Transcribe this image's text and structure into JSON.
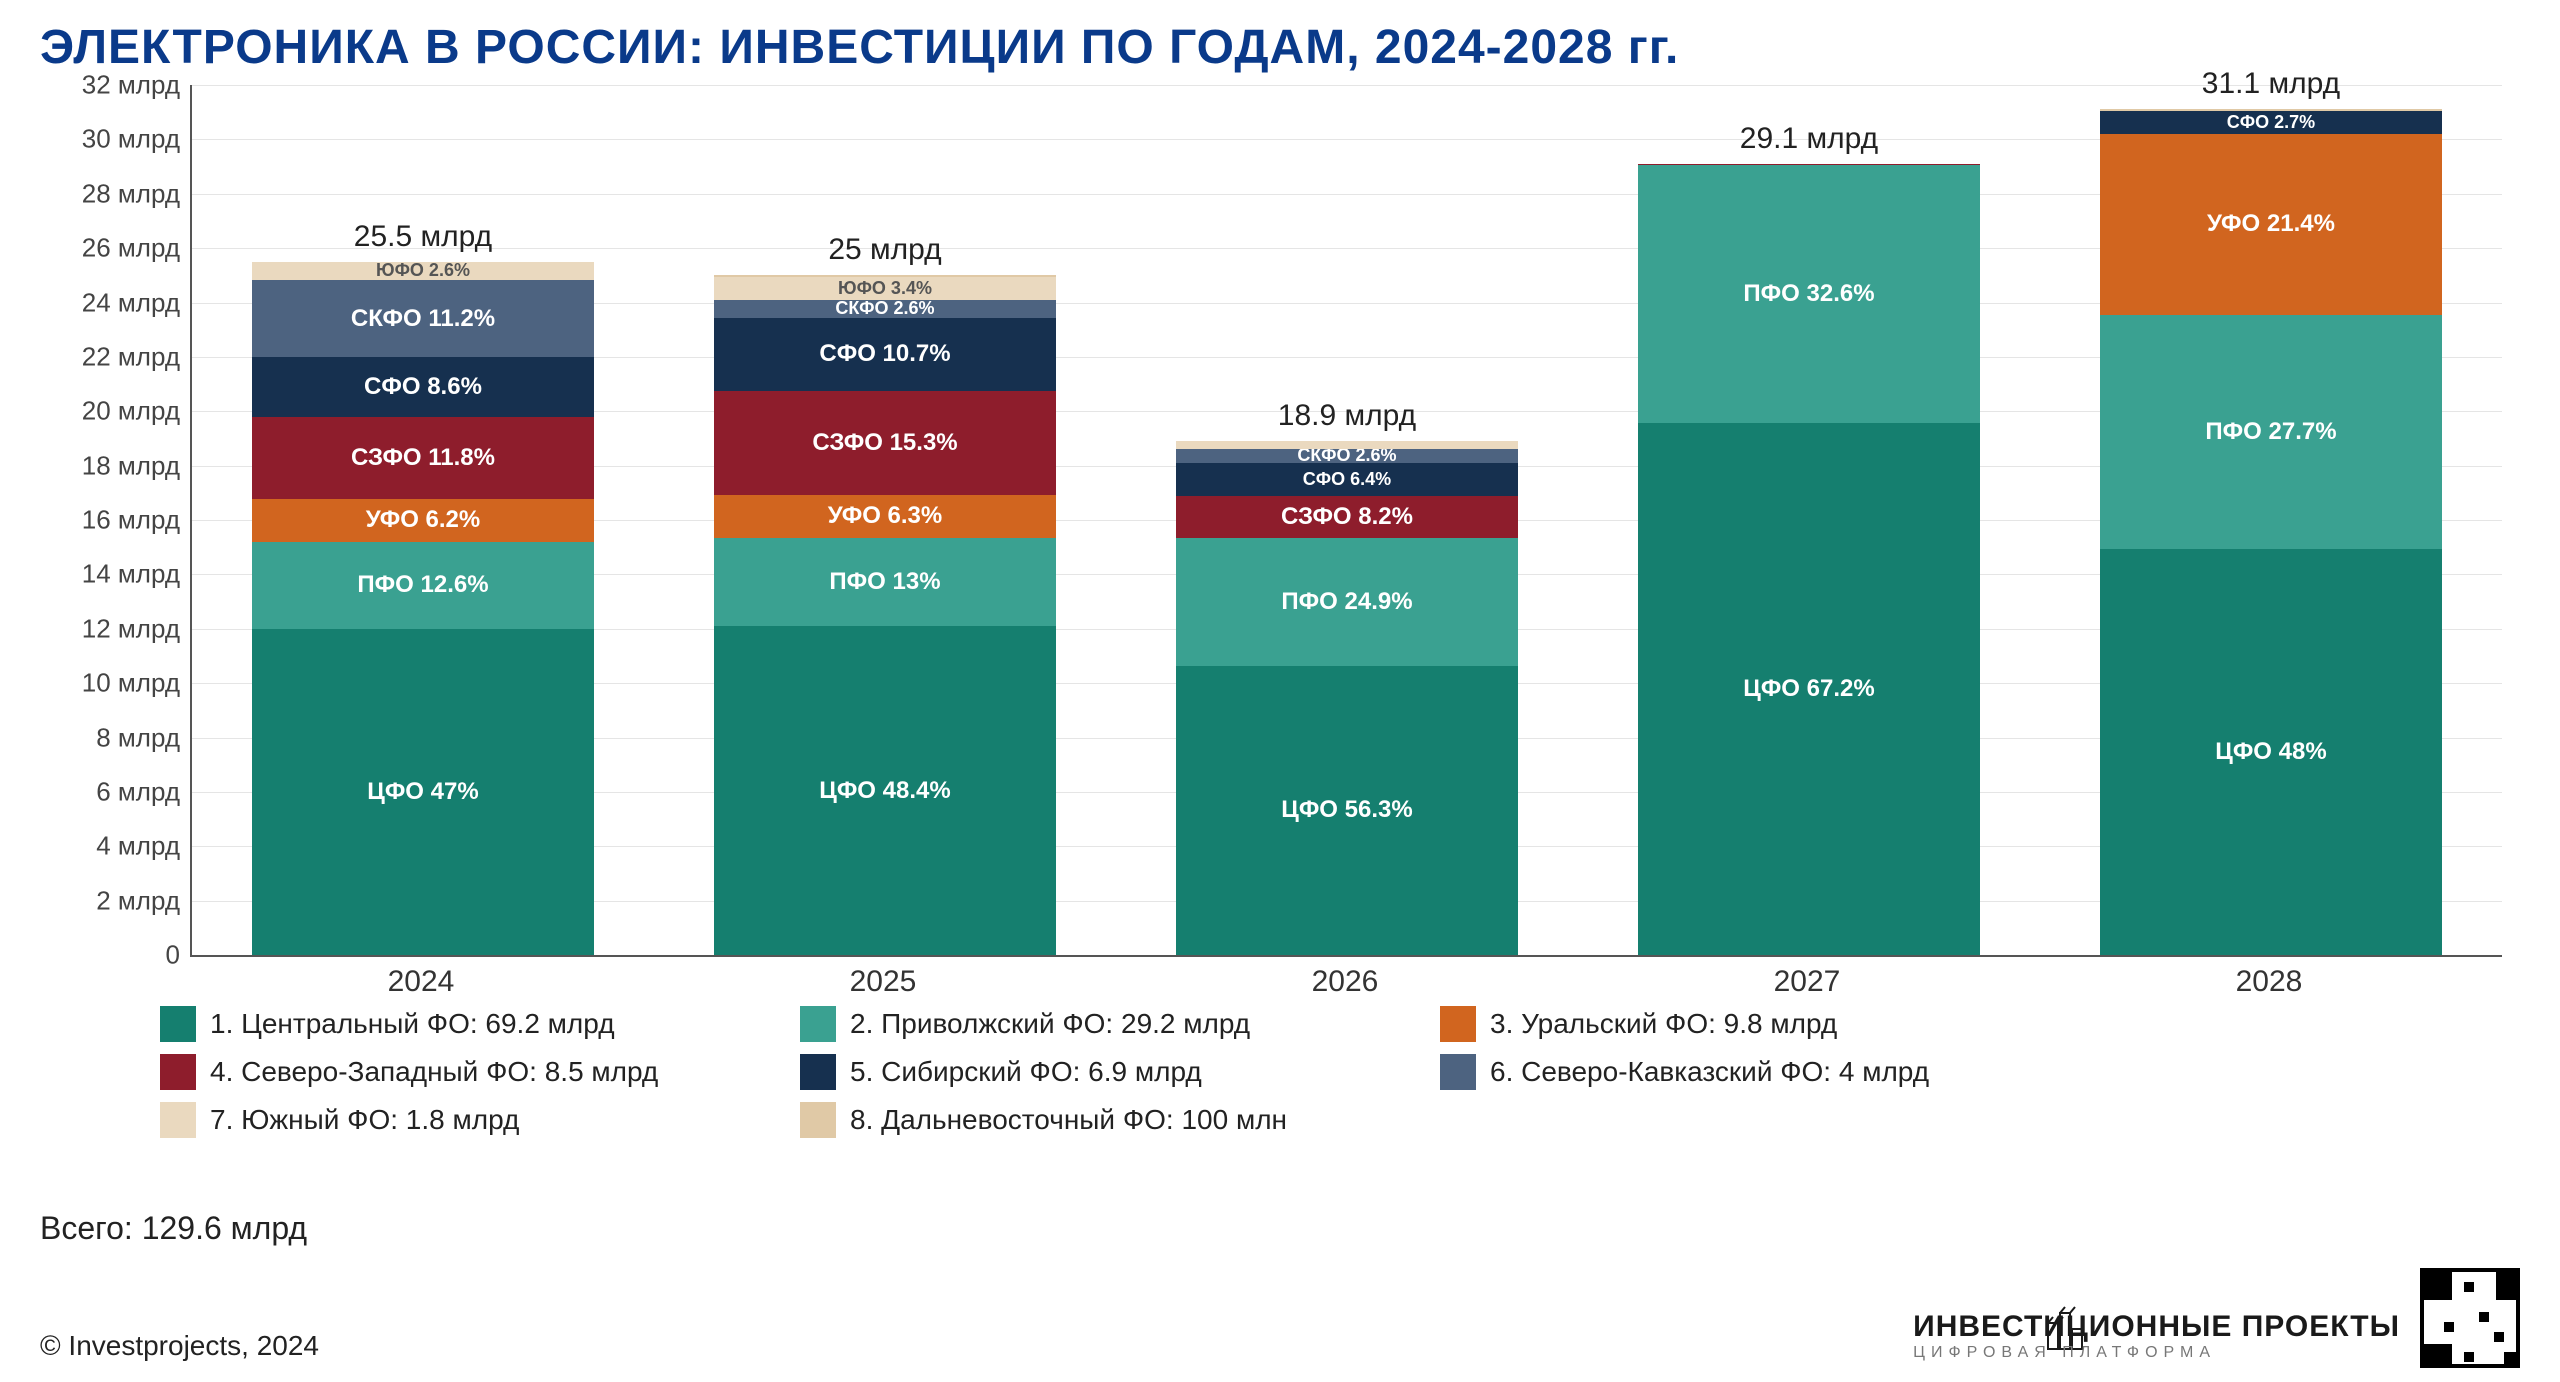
{
  "title": {
    "text": "ЭЛЕКТРОНИКА В РОССИИ: ИНВЕСТИЦИИ ПО ГОДАМ, 2024-2028 гг.",
    "color": "#0a3a8a"
  },
  "chart": {
    "type": "stacked-bar",
    "ylim": [
      0,
      32
    ],
    "ytick_step": 2,
    "ytick_unit": "млрд",
    "bar_width_ratio": 0.74,
    "background_color": "#ffffff",
    "grid_color": "#e5e5e5",
    "axis_color": "#555555",
    "label_fontsize": 26,
    "total_label_fontsize": 30,
    "segment_label_fontsize": 24,
    "years": [
      "2024",
      "2025",
      "2026",
      "2027",
      "2028"
    ],
    "bars": [
      {
        "year": "2024",
        "total_label": "25.5 млрд",
        "segments": [
          {
            "series": "cfo",
            "value": 11.99,
            "label": "ЦФО 47%"
          },
          {
            "series": "pfo",
            "value": 3.21,
            "label": "ПФО 12.6%"
          },
          {
            "series": "ufo",
            "value": 1.58,
            "label": "УФО 6.2%"
          },
          {
            "series": "szfo",
            "value": 3.01,
            "label": "СЗФО 11.8%"
          },
          {
            "series": "sfo",
            "value": 2.19,
            "label": "СФО 8.6%"
          },
          {
            "series": "skfo",
            "value": 2.86,
            "label": "СКФО 11.2%"
          },
          {
            "series": "yufo",
            "value": 0.66,
            "label": "ЮФО 2.6%"
          }
        ]
      },
      {
        "year": "2025",
        "total_label": "25 млрд",
        "segments": [
          {
            "series": "cfo",
            "value": 12.1,
            "label": "ЦФО 48.4%"
          },
          {
            "series": "pfo",
            "value": 3.25,
            "label": "ПФО 13%"
          },
          {
            "series": "ufo",
            "value": 1.58,
            "label": "УФО 6.3%"
          },
          {
            "series": "szfo",
            "value": 3.83,
            "label": "СЗФО 15.3%"
          },
          {
            "series": "sfo",
            "value": 2.68,
            "label": "СФО 10.7%"
          },
          {
            "series": "skfo",
            "value": 0.65,
            "label": "СКФО 2.6%"
          },
          {
            "series": "yufo",
            "value": 0.85,
            "label": "ЮФО 3.4%"
          },
          {
            "series": "dvfo",
            "value": 0.06,
            "label": ""
          }
        ]
      },
      {
        "year": "2026",
        "total_label": "18.9 млрд",
        "segments": [
          {
            "series": "cfo",
            "value": 10.64,
            "label": "ЦФО 56.3%"
          },
          {
            "series": "pfo",
            "value": 4.71,
            "label": "ПФО 24.9%"
          },
          {
            "series": "szfo",
            "value": 1.55,
            "label": "СЗФО 8.2%"
          },
          {
            "series": "sfo",
            "value": 1.21,
            "label": "СФО 6.4%"
          },
          {
            "series": "skfo",
            "value": 0.49,
            "label": "СКФО 2.6%"
          },
          {
            "series": "yufo",
            "value": 0.3,
            "label": ""
          }
        ]
      },
      {
        "year": "2027",
        "total_label": "29.1 млрд",
        "segments": [
          {
            "series": "cfo",
            "value": 19.56,
            "label": "ЦФО 67.2%"
          },
          {
            "series": "pfo",
            "value": 9.49,
            "label": "ПФО 32.6%"
          },
          {
            "series": "szfo",
            "value": 0.05,
            "label": ""
          }
        ]
      },
      {
        "year": "2028",
        "total_label": "31.1 млрд",
        "segments": [
          {
            "series": "cfo",
            "value": 14.93,
            "label": "ЦФО 48%"
          },
          {
            "series": "pfo",
            "value": 8.61,
            "label": "ПФО 27.7%"
          },
          {
            "series": "ufo",
            "value": 6.66,
            "label": "УФО 21.4%"
          },
          {
            "series": "sfo",
            "value": 0.84,
            "label": "СФО 2.7%"
          },
          {
            "series": "dvfo",
            "value": 0.06,
            "label": ""
          }
        ]
      }
    ]
  },
  "series": {
    "cfo": {
      "color": "#157f6f",
      "legend": "1. Центральный ФО: 69.2 млрд"
    },
    "pfo": {
      "color": "#3aa191",
      "legend": "2. Приволжский ФО: 29.2 млрд"
    },
    "ufo": {
      "color": "#d1651f",
      "legend": "3. Уральский ФО: 9.8 млрд"
    },
    "szfo": {
      "color": "#8e1d2c",
      "legend": "4. Северо-Западный ФО: 8.5 млрд"
    },
    "sfo": {
      "color": "#16304f",
      "legend": "5. Сибирский ФО: 6.9 млрд"
    },
    "skfo": {
      "color": "#4d6380",
      "legend": "6. Северо-Кавказский ФО: 4 млрд"
    },
    "yufo": {
      "color": "#ead9bf",
      "legend": "7. Южный ФО: 1.8 млрд",
      "text_color": "#555"
    },
    "dvfo": {
      "color": "#e0c9a6",
      "legend": "8. Дальневосточный ФО: 100 млн",
      "text_color": "#555"
    }
  },
  "legend_order": [
    "cfo",
    "pfo",
    "ufo",
    "szfo",
    "sfo",
    "skfo",
    "yufo",
    "dvfo"
  ],
  "total_line": "Всего: 129.6 млрд",
  "copyright": "© Investprojects, 2024",
  "brand": {
    "line1": "ИНВЕСТИЦИОННЫЕ ПРОЕКТЫ",
    "line2": "ЦИФРОВАЯ ПЛАТФОРМА"
  }
}
